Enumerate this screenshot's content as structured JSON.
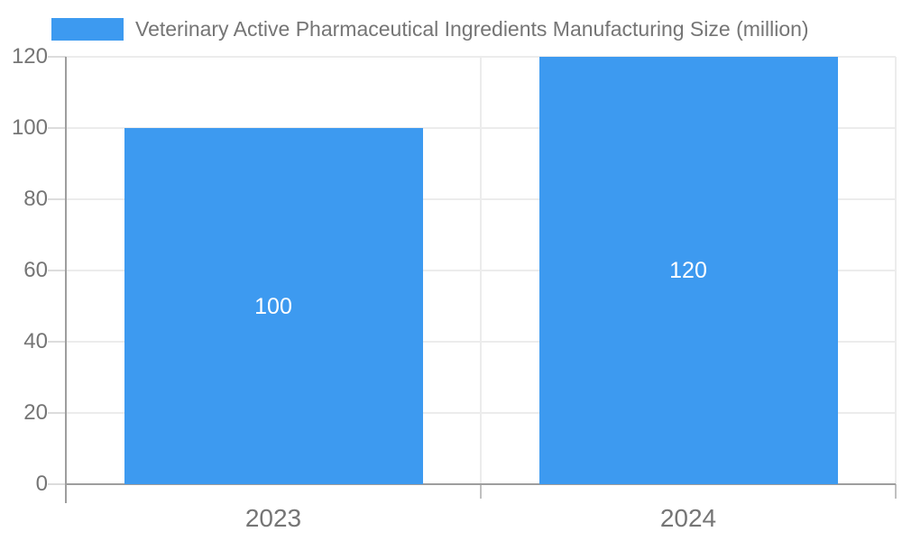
{
  "chart_data": {
    "type": "bar",
    "title": "Veterinary Active Pharmaceutical Ingredients Manufacturing Size (million)",
    "series_name": "Veterinary Active Pharmaceutical Ingredients Manufacturing Size (million)",
    "categories": [
      "2023",
      "2024"
    ],
    "values": [
      100,
      120
    ],
    "data_labels": [
      "100",
      "120"
    ],
    "xlabel": "",
    "ylabel": "",
    "ylim": [
      0,
      120
    ],
    "yticks": [
      0,
      20,
      40,
      60,
      80,
      100,
      120
    ],
    "grid": true,
    "legend_position": "top-left",
    "colors": {
      "bar": "#3D9AF0",
      "data_label": "#ffffff",
      "axis_text": "#757575",
      "grid_line": "#ececec",
      "tick": "#dcdcdc",
      "axis_line": "#9e9e9e",
      "x_tick": "#c0c0c0",
      "background": "#ffffff"
    }
  }
}
